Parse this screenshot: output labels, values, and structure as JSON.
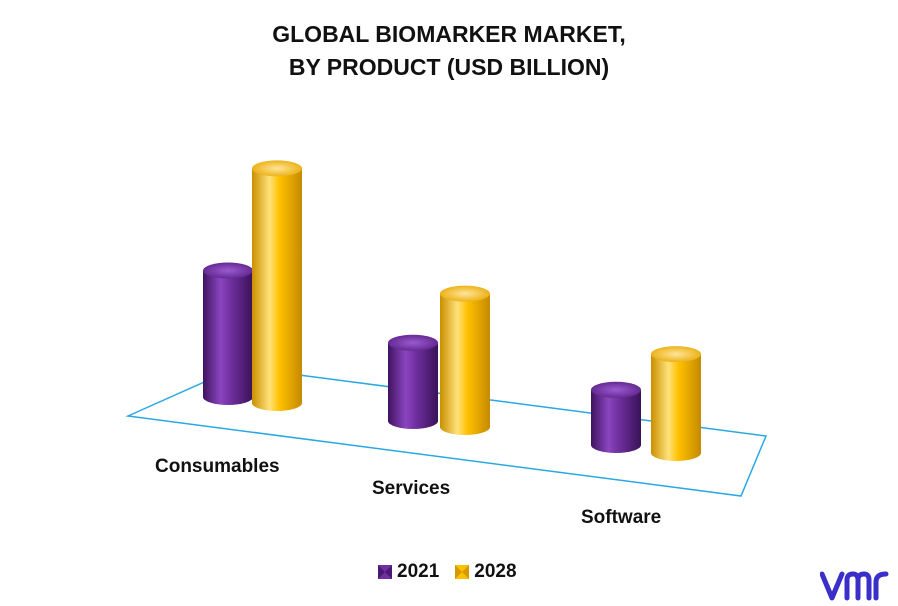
{
  "title": {
    "line1": "GLOBAL BIOMARKER MARKET,",
    "line2": "BY PRODUCT (USD BILLION)"
  },
  "colors": {
    "series_2021": "#7030a0",
    "series_2028": "#ffc000",
    "floor_outline": "#2aa9e0",
    "logo": "#3b2fc9"
  },
  "logo_text": "vmr",
  "chart_data": {
    "type": "bar",
    "style": "3d-cylinder",
    "categories": [
      "Consumables",
      "Services",
      "Software"
    ],
    "series": [
      {
        "name": "2021",
        "values": [
          27.5,
          17.0,
          12.0
        ]
      },
      {
        "name": "2028",
        "values": [
          51.0,
          29.0,
          21.5
        ]
      }
    ],
    "title": "GLOBAL BIOMARKER MARKET, BY PRODUCT (USD BILLION)",
    "xlabel": "",
    "ylabel": "",
    "grid": false,
    "legend": "bottom"
  }
}
